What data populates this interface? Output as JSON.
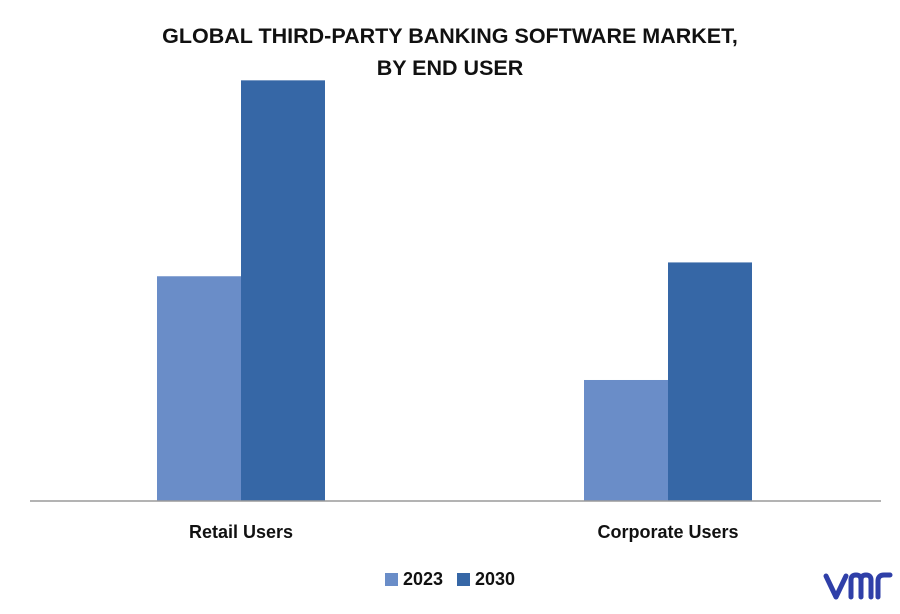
{
  "title_line1": "GLOBAL THIRD-PARTY BANKING SOFTWARE MARKET,",
  "title_line2": "BY END USER",
  "logo_text": "vmr",
  "chart_data": {
    "type": "bar",
    "categories": [
      "Retail Users",
      "Corporate Users"
    ],
    "series": [
      {
        "name": "2023",
        "color": "#6a8dc8",
        "values": [
          1.95,
          1.05
        ]
      },
      {
        "name": "2030",
        "color": "#3667a6",
        "values": [
          3.65,
          2.07
        ]
      }
    ],
    "ylim": [
      0,
      4
    ],
    "grid": false,
    "legend_position": "bottom-center",
    "title": "GLOBAL THIRD-PARTY BANKING SOFTWARE MARKET, BY END USER",
    "xlabel": "",
    "ylabel": ""
  }
}
